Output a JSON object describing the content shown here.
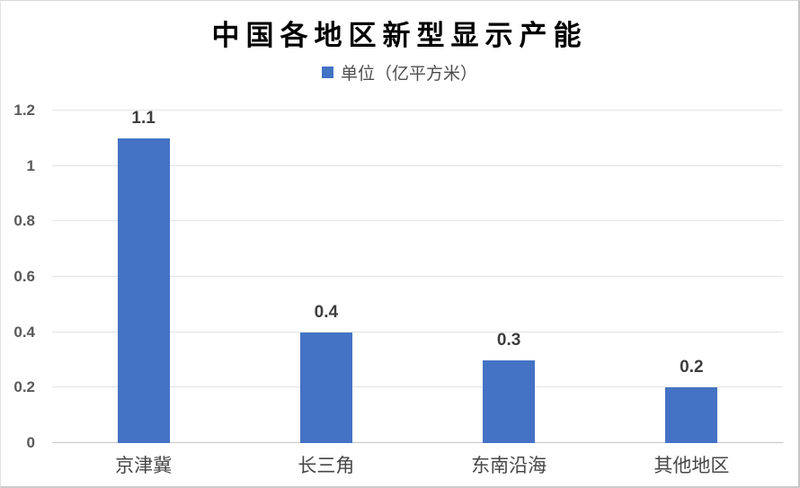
{
  "chart_data": {
    "type": "bar",
    "title": "中国各地区新型显示产能",
    "legend_label": "单位（亿平方米）",
    "legend_position": "top",
    "categories": [
      "京津冀",
      "长三角",
      "东南沿海",
      "其他地区"
    ],
    "values": [
      1.1,
      0.4,
      0.3,
      0.2
    ],
    "data_labels": [
      "1.1",
      "0.4",
      "0.3",
      "0.2"
    ],
    "xlabel": "",
    "ylabel": "",
    "ylim": [
      0,
      1.2
    ],
    "ytick_values": [
      0,
      0.2,
      0.4,
      0.6,
      0.8,
      1,
      1.2
    ],
    "ytick_labels": [
      "0",
      "0.2",
      "0.4",
      "0.6",
      "0.8",
      "1",
      "1.2"
    ],
    "grid": true
  },
  "colors": {
    "bar": "#4472C4",
    "legend_swatch": "#4472C4",
    "gridline": "#E3E3E3",
    "axis_line": "#C6C6C6",
    "tick_label": "#595959",
    "data_label": "#3D3D3D",
    "category_label": "#474747",
    "title": "#000000",
    "background": "#FFFFFF",
    "canvas_border": "#C5C5C5"
  }
}
